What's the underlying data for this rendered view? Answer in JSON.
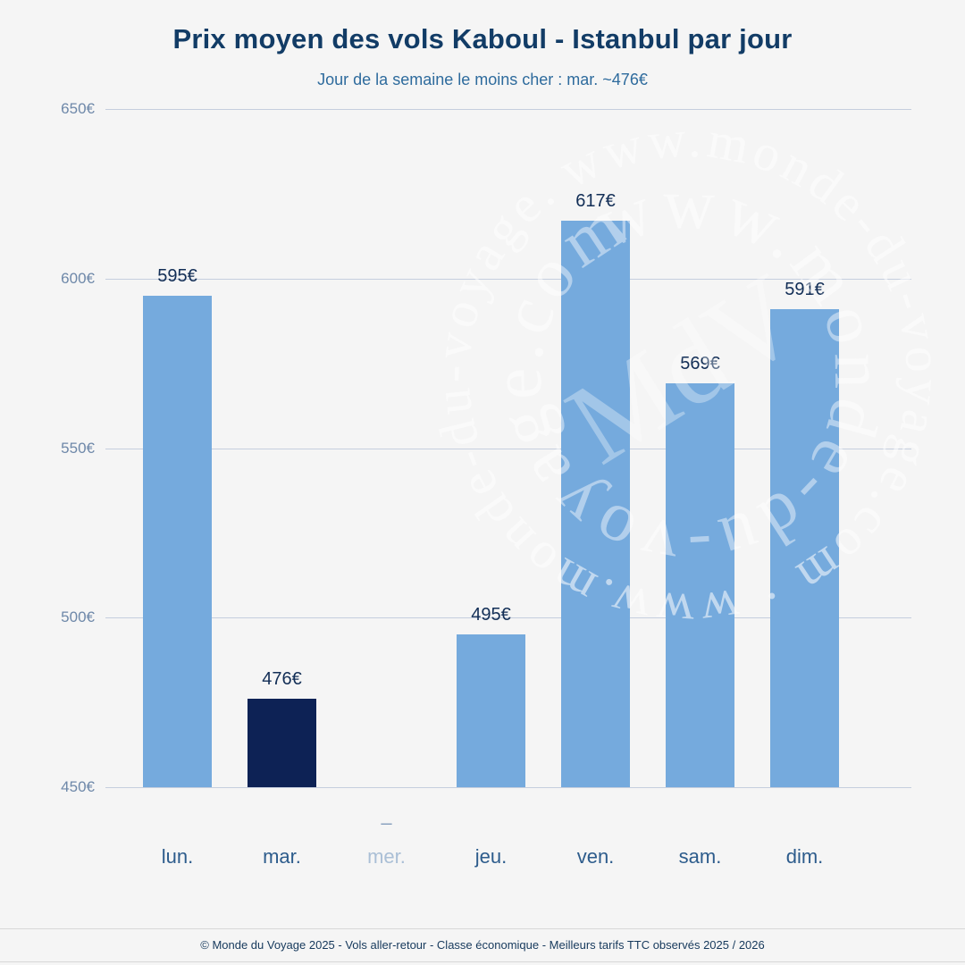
{
  "header": {
    "title": "Prix moyen des vols Kaboul - Istanbul par jour",
    "subtitle": "Jour de la semaine le moins cher : mar. ~476€"
  },
  "chart_data": {
    "type": "bar",
    "title": "Prix moyen des vols Kaboul - Istanbul par jour",
    "subtitle": "Jour de la semaine le moins cher : mar. ~476€",
    "categories": [
      "lun.",
      "mar.",
      "mer.",
      "jeu.",
      "ven.",
      "sam.",
      "dim."
    ],
    "values": [
      595,
      476,
      null,
      495,
      617,
      569,
      591
    ],
    "value_labels": [
      "595€",
      "476€",
      "",
      "495€",
      "617€",
      "569€",
      "591€"
    ],
    "no_data": {
      "index": 2,
      "symbol": "–"
    },
    "highlight_index": 1,
    "ylim": [
      450,
      650
    ],
    "yticks": [
      {
        "value": 650,
        "label": "650€"
      },
      {
        "value": 600,
        "label": "600€"
      },
      {
        "value": 550,
        "label": "550€"
      },
      {
        "value": 500,
        "label": "500€"
      },
      {
        "value": 450,
        "label": "450€"
      }
    ],
    "grid": true,
    "legend": "none",
    "colors": {
      "bar": "#75aadd",
      "highlight": "#0d2255",
      "grid": "#c5cede",
      "axis_text": "#6e88a9",
      "value_text": "#122e56",
      "xlabel_text": "#2d5c8c",
      "xlabel_muted": "#aabfd6",
      "title_text": "#123c66",
      "subtitle_text": "#2e6b9d"
    }
  },
  "watermark": {
    "text": "www.monde-du-voyage.com",
    "center_text": "MdV"
  },
  "footer": {
    "text": "© Monde du Voyage 2025 - Vols aller-retour - Classe économique - Meilleurs tarifs TTC observés 2025 / 2026"
  }
}
